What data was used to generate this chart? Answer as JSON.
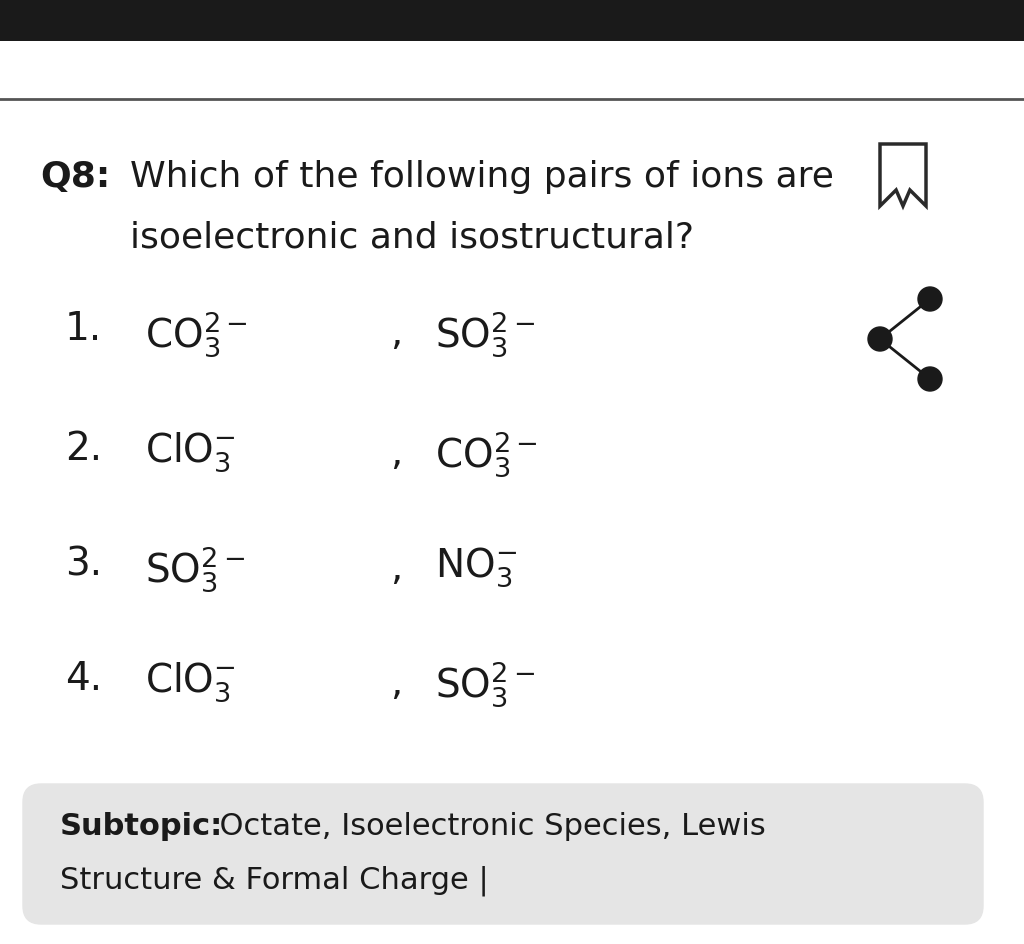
{
  "background_color": "#ffffff",
  "top_bar_color": "#1a1a1a",
  "divider_color": "#555555",
  "question_label": "Q8:",
  "question_text_line1": "Which of the following pairs of ions are",
  "question_text_line2": "isoelectronic and isostructural?",
  "options": [
    {
      "num": "1.",
      "formula1": "CO$_3^{2-}$",
      "formula2": "SO$_3^{2-}$"
    },
    {
      "num": "2.",
      "formula1": "ClO$_3^{-}$",
      "formula2": "CO$_3^{2-}$"
    },
    {
      "num": "3.",
      "formula1": "SO$_3^{2-}$",
      "formula2": "NO$_3^{-}$"
    },
    {
      "num": "4.",
      "formula1": "ClO$_3^{-}$",
      "formula2": "SO$_3^{2-}$"
    }
  ],
  "subtopic_label": "Subtopic:",
  "subtopic_rest": "  Octate, Isoelectronic Species, Lewis",
  "subtopic_line2": "Structure & Formal Charge |",
  "subtopic_box_color": "#e5e5e5",
  "text_color": "#1a1a1a",
  "option_font_size": 28,
  "question_font_size": 26,
  "subtopic_font_size": 22,
  "bookmark_color": "#2a2a2a",
  "share_color": "#1a1a1a"
}
